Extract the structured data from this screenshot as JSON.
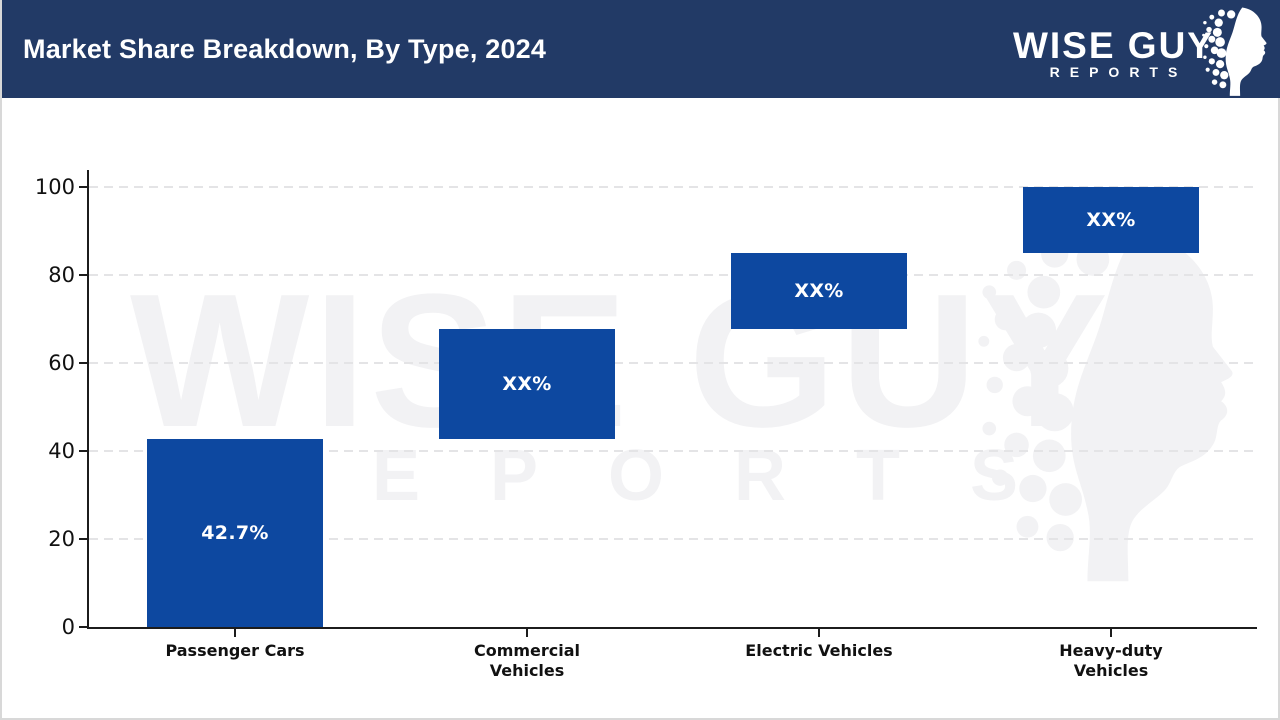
{
  "header": {
    "title": "Market Share Breakdown, By Type, 2024",
    "logo": {
      "line1": "WISE GUY",
      "line2": "REPORTS"
    }
  },
  "watermark": {
    "line1": "WISE GUY",
    "line2": "REPORTS"
  },
  "chart_data": {
    "type": "bar",
    "subtype": "waterfall",
    "title": "Market Share Breakdown, By Type, 2024",
    "categories": [
      "Passenger Cars",
      "Commercial Vehicles",
      "Electric Vehicles",
      "Heavy-duty Vehicles"
    ],
    "category_label_lines": [
      [
        "Passenger Cars"
      ],
      [
        "Commercial",
        "Vehicles"
      ],
      [
        "Electric Vehicles"
      ],
      [
        "Heavy-duty",
        "Vehicles"
      ]
    ],
    "segments": [
      {
        "category": "Passenger Cars",
        "start": 0,
        "end": 42.7,
        "label": "42.7%"
      },
      {
        "category": "Commercial Vehicles",
        "start": 42.7,
        "end": 67.7,
        "label": "XX%"
      },
      {
        "category": "Electric Vehicles",
        "start": 67.7,
        "end": 85.0,
        "label": "XX%"
      },
      {
        "category": "Heavy-duty Vehicles",
        "start": 85.0,
        "end": 100.0,
        "label": "XX%"
      }
    ],
    "ylim": [
      0,
      100
    ],
    "yticks": [
      0,
      20,
      40,
      60,
      80,
      100
    ],
    "grid": "horizontal-dashed",
    "legend": "none",
    "colors": {
      "bar": "#0D48A0",
      "bar_label": "#FFFFFF",
      "axis": "#1C1C1C",
      "grid": "#E4E4E6",
      "tick_label": "#111111"
    }
  },
  "theme": {
    "header_bg": "#223A66",
    "page_border": "#D8D8D8",
    "watermark_color": "#F2F2F4"
  }
}
